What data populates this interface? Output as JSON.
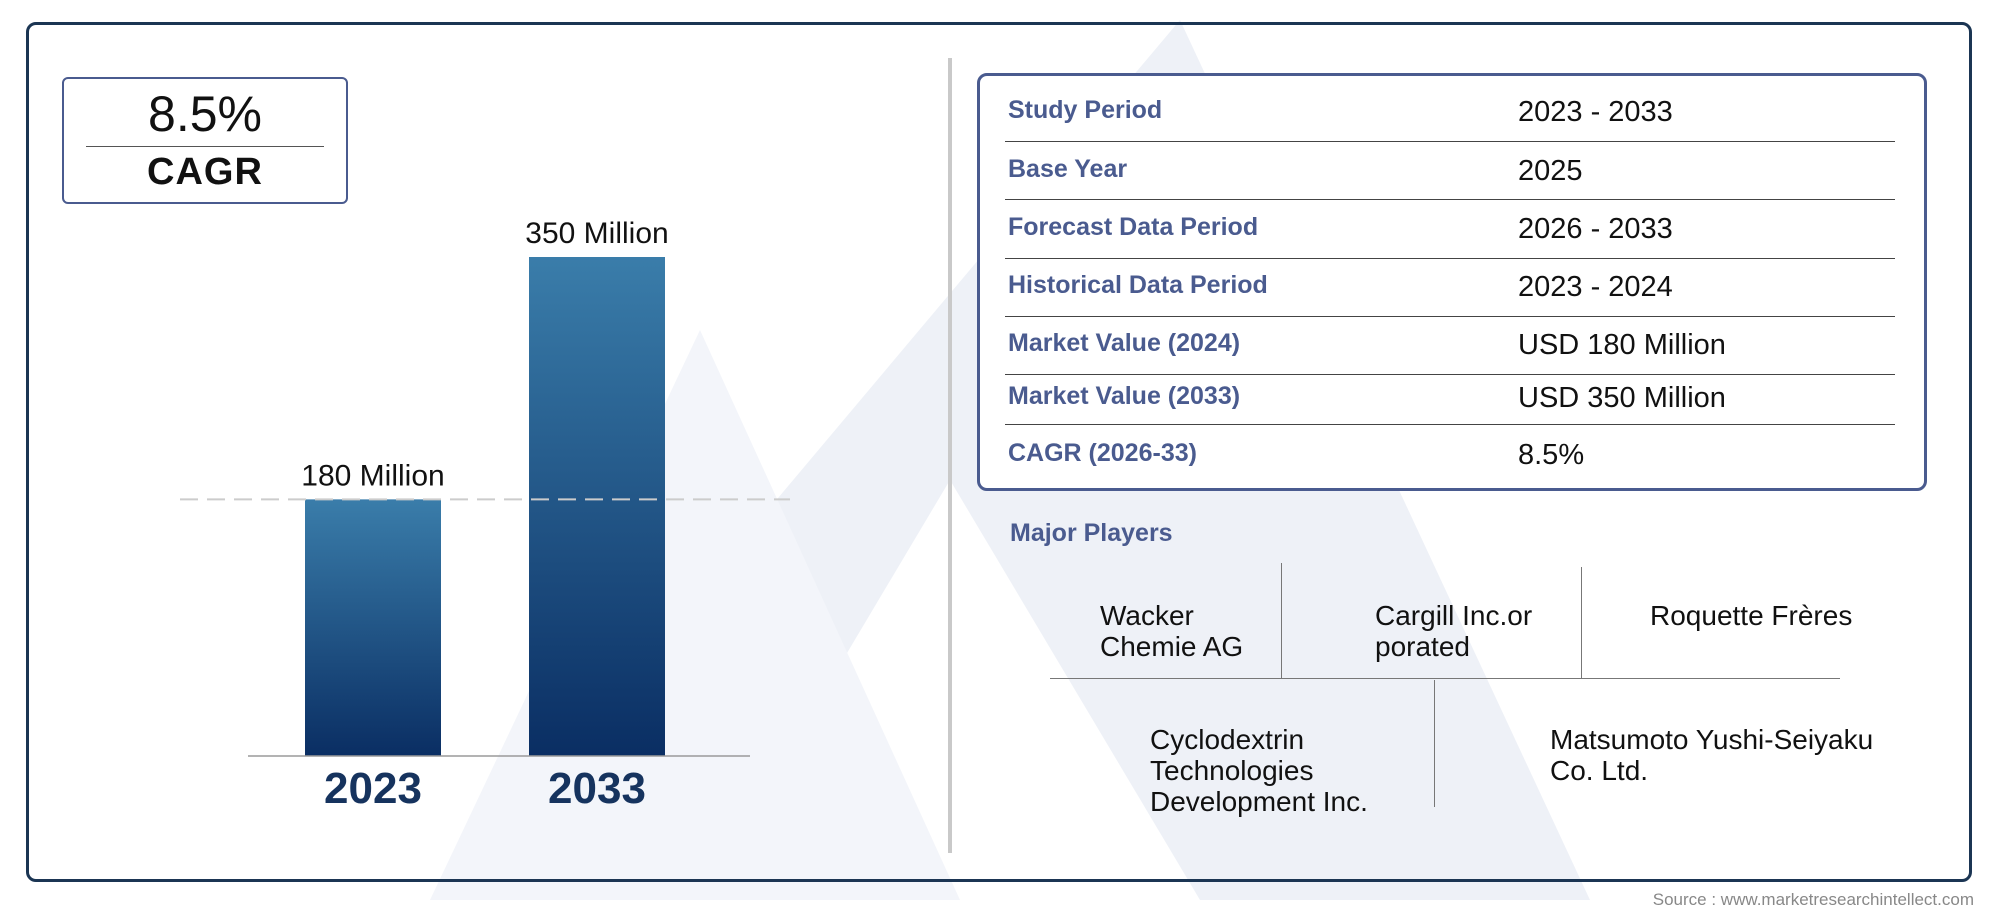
{
  "summary": {
    "cagr_value": "8.5%",
    "cagr_label": "CAGR"
  },
  "chart_data": {
    "type": "bar",
    "categories": [
      "2023",
      "2033"
    ],
    "values": [
      180,
      350
    ],
    "data_labels": [
      "180 Million",
      "350 Million"
    ],
    "unit": "Million",
    "title": "",
    "xlabel": "",
    "ylabel": "",
    "ylim": [
      0,
      350
    ],
    "grid": false,
    "colors": {
      "bar_top": "#3a7daa",
      "bar_bottom": "#0a2e63",
      "category_label": "#16335e",
      "reference_line": "#cccccc"
    }
  },
  "info_table": {
    "rows": [
      {
        "key": "Study Period",
        "value": "2023 - 2033"
      },
      {
        "key": "Base Year",
        "value": "2025"
      },
      {
        "key": "Forecast Data Period",
        "value": "2026 - 2033"
      },
      {
        "key": "Historical Data Period",
        "value": "2023 - 2024"
      },
      {
        "key": "Market Value (2024)",
        "value": "USD 180 Million"
      },
      {
        "key": "Market Value (2033)",
        "value": "USD 350 Million"
      },
      {
        "key": "CAGR (2026-33)",
        "value": "8.5%"
      }
    ]
  },
  "players": {
    "title": "Major Players",
    "names": [
      "Wacker Chemie AG",
      "Cargill Inc.orporated",
      "Roquette Frères",
      "Cyclodextrin Technologies Development Inc.",
      "Matsumoto Yushi-Seiyaku Co. Ltd."
    ]
  },
  "source": "Source : www.marketresearchintellect.com",
  "colors": {
    "frame": "#1b3553",
    "accent": "#4a5b8f"
  }
}
